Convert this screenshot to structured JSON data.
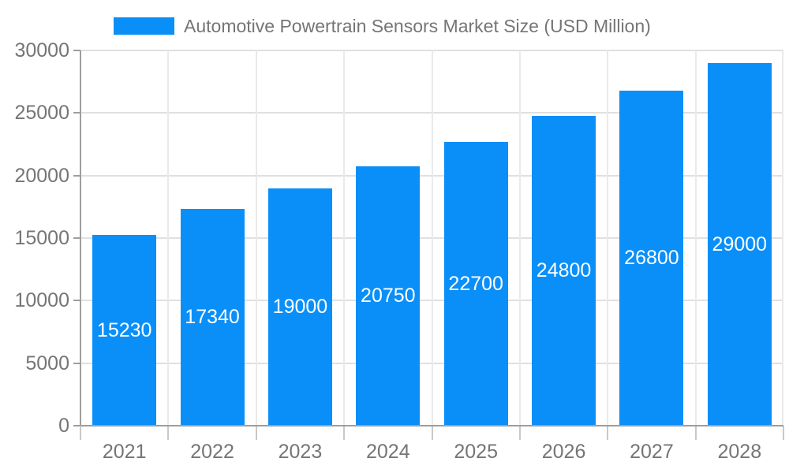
{
  "legend": {
    "label": "Automotive Powertrain Sensors Market Size (USD Million)",
    "position": "top"
  },
  "chart_data": {
    "type": "bar",
    "title": "Automotive Powertrain Sensors Market Size (USD Million)",
    "categories": [
      "2021",
      "2022",
      "2023",
      "2024",
      "2025",
      "2026",
      "2027",
      "2028"
    ],
    "values": [
      15230,
      17340,
      19000,
      20750,
      22700,
      24800,
      26800,
      29000
    ],
    "series": [
      {
        "name": "Automotive Powertrain Sensors Market Size (USD Million)",
        "values": [
          15230,
          17340,
          19000,
          20750,
          22700,
          24800,
          26800,
          29000
        ]
      }
    ],
    "xlabel": "",
    "ylabel": "",
    "ylim": [
      0,
      30000
    ],
    "y_ticks": [
      0,
      5000,
      10000,
      15000,
      20000,
      25000,
      30000
    ],
    "grid": true,
    "legend_position": "top",
    "value_labels_shown": true,
    "colors": {
      "bar": "#0a8ff8",
      "value_label": "#ffffff",
      "axis_text": "#757575",
      "axis_line": "#9e9e9e",
      "tick": "#c9c9c9",
      "grid_h": "#e0e0e0",
      "grid_v": "#eaeaea",
      "background": "#ffffff"
    }
  }
}
